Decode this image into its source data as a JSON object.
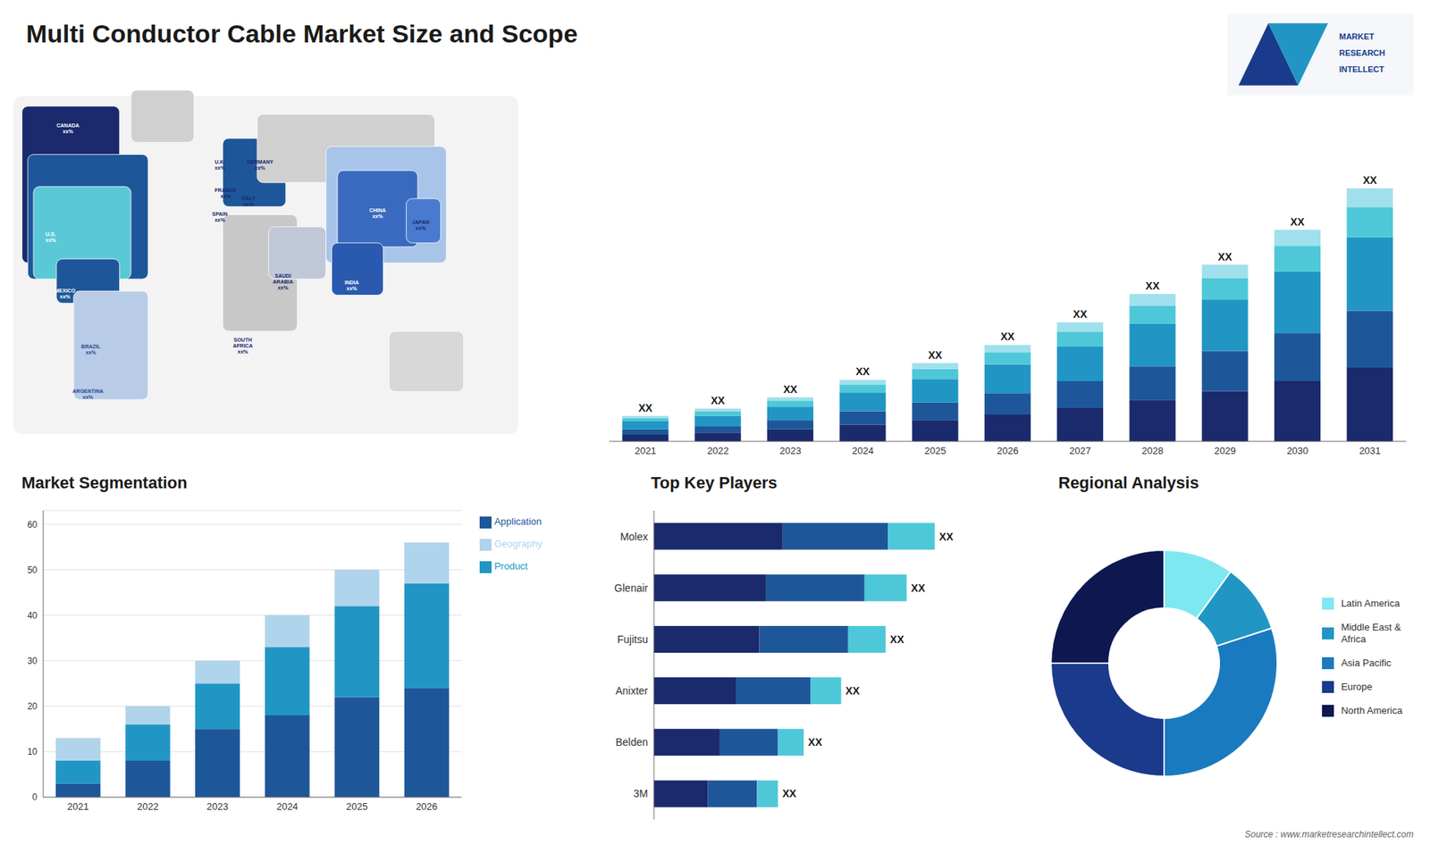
{
  "chart_data": [
    {
      "type": "map",
      "annotations": [
        "CANADA\nxx%",
        "U.S.\nxx%",
        "MEXICO\nxx%",
        "BRAZIL\nxx%",
        "ARGENTINA\nxx%",
        "U.K.\nxx%",
        "FRANCE\nxx%",
        "SPAIN\nxx%",
        "GERMANY\nxx%",
        "ITALY\nxx%",
        "SAUDI\nARABIA\nxx%",
        "SOUTH\nAFRICA\nxx%",
        "CHINA\nxx%",
        "JAPAN\nxx%",
        "INDIA\nxx%"
      ],
      "colors": [
        "#1a2a6c",
        "#1e5799",
        "#5bc8d8",
        "#1e5799",
        "#b8cce8",
        "#1e5799",
        "#c8c8c8",
        "#c0c8d8",
        "#d0d0d0",
        "#a8c4e8",
        "#3a6abf",
        "#2a5aaf",
        "#4a7acf",
        "#d8d8d8",
        "#d0d0d0"
      ]
    },
    {
      "type": "bar",
      "title": "Multi Conductor Cable Market Size and Scope",
      "categories": [
        2021,
        2022,
        2023,
        2024,
        2025,
        2026,
        2027,
        2028,
        2029,
        2030,
        2031
      ],
      "stacked": true,
      "series": [
        {
          "color": "#1a2a6c",
          "values": [
            1.0,
            1.3,
            1.8,
            2.5,
            3.2,
            4.0,
            5.0,
            6.2,
            7.5,
            9.0,
            11.0
          ]
        },
        {
          "color": "#1e5799",
          "values": [
            0.8,
            1.0,
            1.4,
            2.0,
            2.6,
            3.2,
            4.0,
            5.0,
            6.0,
            7.2,
            8.5
          ]
        },
        {
          "color": "#2196c4",
          "values": [
            1.2,
            1.5,
            2.0,
            2.8,
            3.5,
            4.3,
            5.2,
            6.4,
            7.7,
            9.2,
            11.0
          ]
        },
        {
          "color": "#4ec8d8",
          "values": [
            0.5,
            0.7,
            0.9,
            1.2,
            1.5,
            1.8,
            2.2,
            2.7,
            3.2,
            3.8,
            4.5
          ]
        },
        {
          "color": "#a0e0ec",
          "values": [
            0.3,
            0.4,
            0.5,
            0.7,
            0.9,
            1.1,
            1.4,
            1.7,
            2.0,
            2.4,
            2.8
          ]
        }
      ],
      "annotations": [
        "XX",
        "XX",
        "XX",
        "XX",
        "XX",
        "XX",
        "XX",
        "XX",
        "XX",
        "XX",
        "XX"
      ],
      "ylim": [
        0,
        47.25
      ],
      "tick_labels": "x"
    },
    {
      "type": "bar",
      "title": "Market Segmentation",
      "categories": [
        2021,
        2022,
        2023,
        2024,
        2025,
        2026
      ],
      "stacked": true,
      "series": [
        {
          "name": "Application",
          "color": "#1e5799",
          "values": [
            3,
            8,
            15,
            18,
            22,
            24
          ]
        },
        {
          "name": "Product",
          "color": "#2196c4",
          "values": [
            5,
            8,
            10,
            15,
            20,
            23
          ]
        },
        {
          "name": "Geography",
          "color": "#b0d4ec",
          "values": [
            5,
            4,
            5,
            7,
            8,
            9
          ]
        }
      ],
      "ylim": [
        0,
        63
      ],
      "yticks": [
        0,
        10,
        20,
        30,
        40,
        50,
        60
      ],
      "grid": true,
      "legend": "right"
    },
    {
      "type": "bar",
      "title": "Top Key Players",
      "orientation": "horizontal",
      "stacked": true,
      "categories": [
        "Molex",
        "Glenair",
        "Fujitsu",
        "Anixter",
        "Belden",
        "3M"
      ],
      "series": [
        {
          "color": "#1a2a6c",
          "values": [
            5.5,
            4.8,
            4.5,
            3.5,
            2.8,
            2.3
          ]
        },
        {
          "color": "#1e5799",
          "values": [
            4.5,
            4.2,
            3.8,
            3.2,
            2.5,
            2.1
          ]
        },
        {
          "color": "#4ec8d8",
          "values": [
            2.0,
            1.8,
            1.6,
            1.3,
            1.1,
            0.9
          ]
        }
      ],
      "annotations": [
        "XX",
        "XX",
        "XX",
        "XX",
        "XX",
        "XX"
      ],
      "xlim": [
        0,
        14.64
      ],
      "tick_labels": "y"
    },
    {
      "type": "donut",
      "title": "Regional Analysis",
      "categories": [
        "Latin America",
        "Middle East &\nAfrica",
        "Asia Pacific",
        "Europe",
        "North America"
      ],
      "values": [
        10,
        10,
        30,
        25,
        25
      ],
      "colors": [
        "#7ee8f0",
        "#2196c4",
        "#1a7abf",
        "#1a3a8c",
        "#0d1850"
      ],
      "legend": "right"
    },
    {
      "type": "logo",
      "annotations": [
        "MARKET",
        "RESEARCH",
        "INTELLECT"
      ],
      "colors": [
        "#1a3a8c",
        "#2196c4"
      ]
    },
    {
      "type": "text",
      "annotations": [
        "Source : www.marketresearchintellect.com"
      ]
    }
  ]
}
